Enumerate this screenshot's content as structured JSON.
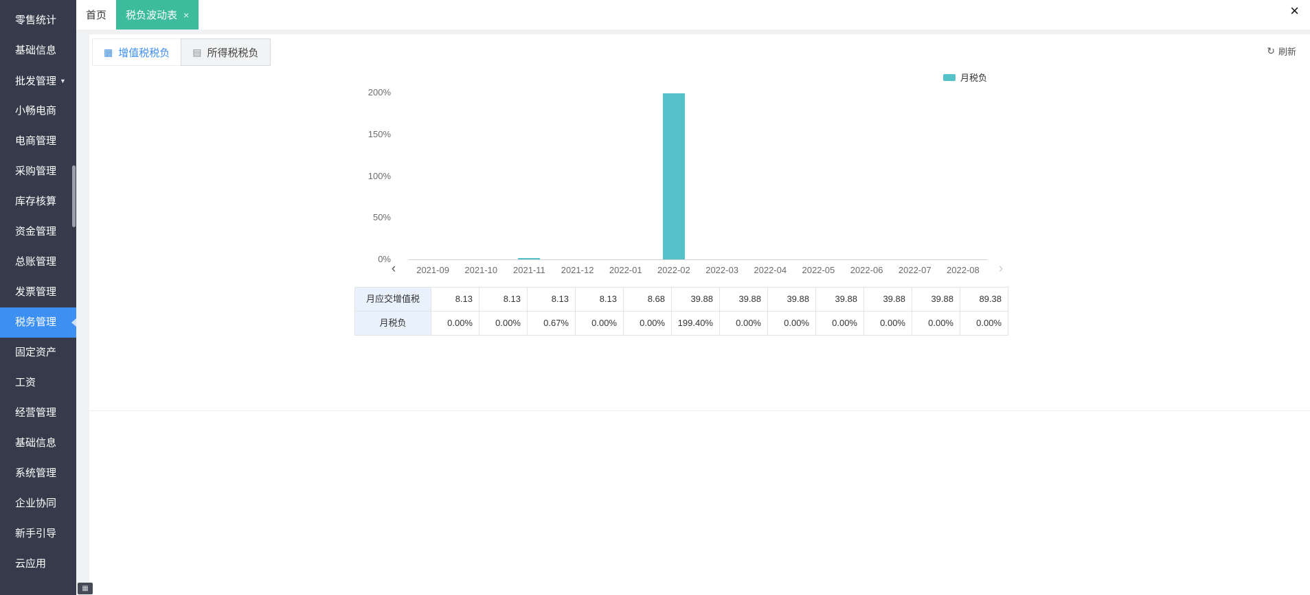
{
  "icons": {
    "close": "×",
    "caret_down": "▼",
    "refresh": "↻",
    "chevron_left": "‹",
    "chevron_right": "›",
    "grid_active": "▦",
    "grid_inactive": "▤",
    "widget": "▦"
  },
  "colors": {
    "sidebar_bg": "#353b4b",
    "accent_blue": "#3d8ff2",
    "tab_green": "#3cbc9c",
    "bar_teal": "#54c2c8",
    "label_cell_bg": "#e9f2fc"
  },
  "sidebar": {
    "items": [
      {
        "label": "零售统计",
        "active": false
      },
      {
        "label": "基础信息",
        "active": false
      },
      {
        "label": "批发管理",
        "active": false,
        "has_dropdown": true
      },
      {
        "label": "小畅电商",
        "active": false
      },
      {
        "label": "电商管理",
        "active": false
      },
      {
        "label": "采购管理",
        "active": false
      },
      {
        "label": "库存核算",
        "active": false
      },
      {
        "label": "资金管理",
        "active": false
      },
      {
        "label": "总账管理",
        "active": false
      },
      {
        "label": "发票管理",
        "active": false
      },
      {
        "label": "税务管理",
        "active": true
      },
      {
        "label": "固定资产",
        "active": false
      },
      {
        "label": "工资",
        "active": false
      },
      {
        "label": "经营管理",
        "active": false
      },
      {
        "label": "基础信息",
        "active": false
      },
      {
        "label": "系统管理",
        "active": false
      },
      {
        "label": "企业协同",
        "active": false
      },
      {
        "label": "新手引导",
        "active": false
      },
      {
        "label": "云应用",
        "active": false
      }
    ]
  },
  "tabbar": {
    "tabs": [
      {
        "label": "首页",
        "active": false,
        "closable": false
      },
      {
        "label": "税负波动表",
        "active": true,
        "closable": true
      }
    ]
  },
  "panel": {
    "tabs": [
      {
        "label": "增值税税负",
        "active": true
      },
      {
        "label": "所得税税负",
        "active": false
      }
    ],
    "refresh_label": "刷新"
  },
  "chart_data": {
    "type": "bar",
    "title": "",
    "legend": [
      "月税负"
    ],
    "legend_position": "top-right",
    "grid": false,
    "categories": [
      "2021-09",
      "2021-10",
      "2021-11",
      "2021-12",
      "2022-01",
      "2022-02",
      "2022-03",
      "2022-04",
      "2022-05",
      "2022-06",
      "2022-07",
      "2022-08"
    ],
    "series": [
      {
        "name": "月税负",
        "values": [
          0,
          0,
          0.67,
          0,
          0,
          199.4,
          0,
          0,
          0,
          0,
          0,
          0
        ],
        "unit": "%"
      }
    ],
    "ylim": [
      0,
      200
    ],
    "yticks": [
      {
        "label": "0%",
        "value": 0
      },
      {
        "label": "50%",
        "value": 50
      },
      {
        "label": "100%",
        "value": 100
      },
      {
        "label": "150%",
        "value": 150
      },
      {
        "label": "200%",
        "value": 200
      }
    ],
    "bar_color": "#54c2c8"
  },
  "table": {
    "rows": [
      {
        "label": "月应交增值税",
        "values": [
          "8.13",
          "8.13",
          "8.13",
          "8.13",
          "8.68",
          "39.88",
          "39.88",
          "39.88",
          "39.88",
          "39.88",
          "39.88",
          "89.38"
        ]
      },
      {
        "label": "月税负",
        "values": [
          "0.00%",
          "0.00%",
          "0.67%",
          "0.00%",
          "0.00%",
          "199.40%",
          "0.00%",
          "0.00%",
          "0.00%",
          "0.00%",
          "0.00%",
          "0.00%"
        ]
      }
    ]
  }
}
